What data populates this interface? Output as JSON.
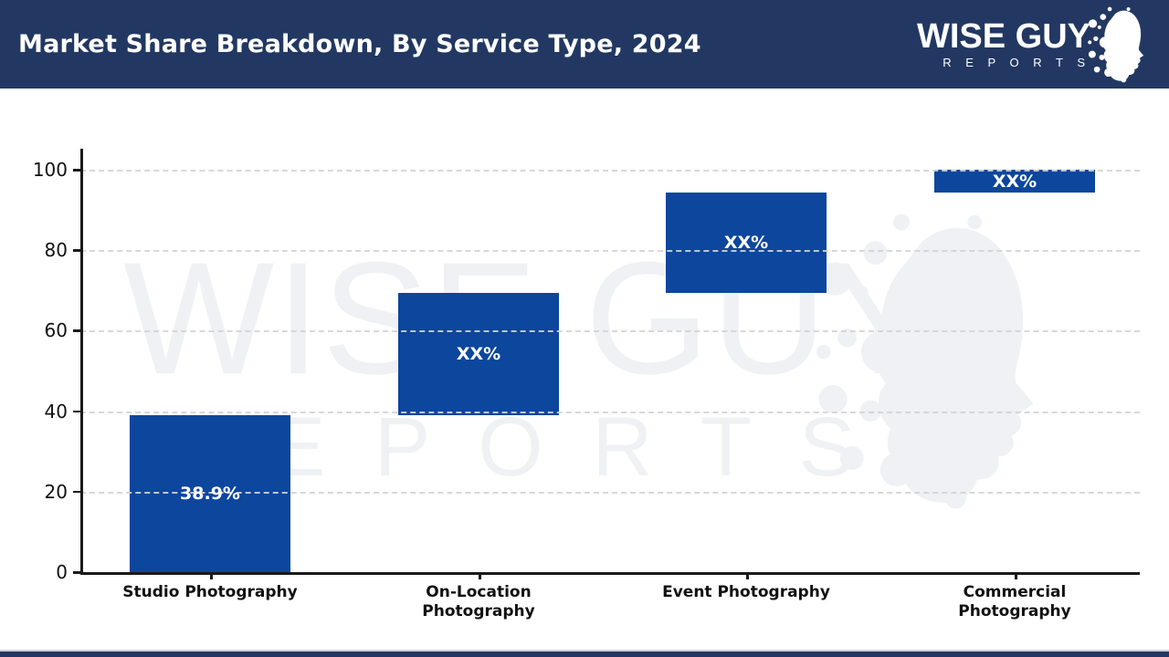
{
  "header": {
    "title": "Market Share Breakdown, By Service Type, 2024",
    "logo_line1": "WISE GUY",
    "logo_line2": "R E P O R T S"
  },
  "watermark": {
    "line1": "WISE GUY",
    "line2": "R E P O R T S"
  },
  "colors": {
    "header_bg": "#223862",
    "bar": "#0c469d",
    "grid": "#d4d4d4",
    "axis": "#1a1a1a",
    "bar_label": "#ffffff",
    "watermark": "#f0f1f4"
  },
  "chart_data": {
    "type": "bar",
    "subtype": "waterfall",
    "title": "Market Share Breakdown, By Service Type, 2024",
    "categories": [
      "Studio Photography",
      "On-Location Photography",
      "Event Photography",
      "Commercial Photography"
    ],
    "category_lines": [
      [
        "Studio Photography"
      ],
      [
        "On-Location",
        "Photography"
      ],
      [
        "Event Photography"
      ],
      [
        "Commercial",
        "Photography"
      ]
    ],
    "segments": [
      {
        "category": "Studio Photography",
        "start": 0,
        "end": 38.9,
        "label": "38.9%"
      },
      {
        "category": "On-Location Photography",
        "start": 38.9,
        "end": 69.4,
        "label": "XX%"
      },
      {
        "category": "Event Photography",
        "start": 69.4,
        "end": 94.3,
        "label": "XX%"
      },
      {
        "category": "Commercial Photography",
        "start": 94.3,
        "end": 100,
        "label": "XX%"
      }
    ],
    "ylim": [
      0,
      100
    ],
    "yticks": [
      0,
      20,
      40,
      60,
      80,
      100
    ],
    "xlabel": "",
    "ylabel": "",
    "grid": "dashed-horizontal",
    "legend": "none"
  }
}
